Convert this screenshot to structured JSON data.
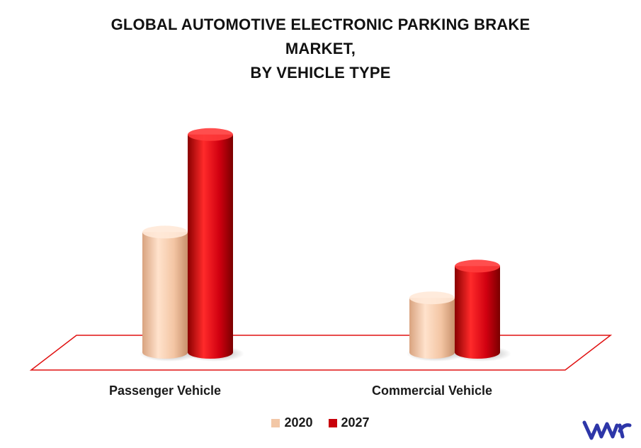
{
  "chart_data": {
    "type": "bar",
    "title_lines": [
      "GLOBAL AUTOMOTIVE ELECTRONIC PARKING BRAKE",
      "MARKET,",
      "BY VEHICLE TYPE"
    ],
    "categories": [
      "Passenger Vehicle",
      "Commercial Vehicle"
    ],
    "series": [
      {
        "name": "2020",
        "values": [
          5.3,
          2.4
        ]
      },
      {
        "name": "2027",
        "values": [
          9.6,
          3.8
        ]
      }
    ],
    "ylim": [
      0,
      10
    ],
    "grid": false,
    "legend_position": "bottom-center",
    "colors": {
      "2020": "#f2c7a6",
      "2027": "#c8000a"
    }
  },
  "branding": {
    "logo_icon": "vmr-logo-icon",
    "logo_color": "#2d36a8"
  }
}
